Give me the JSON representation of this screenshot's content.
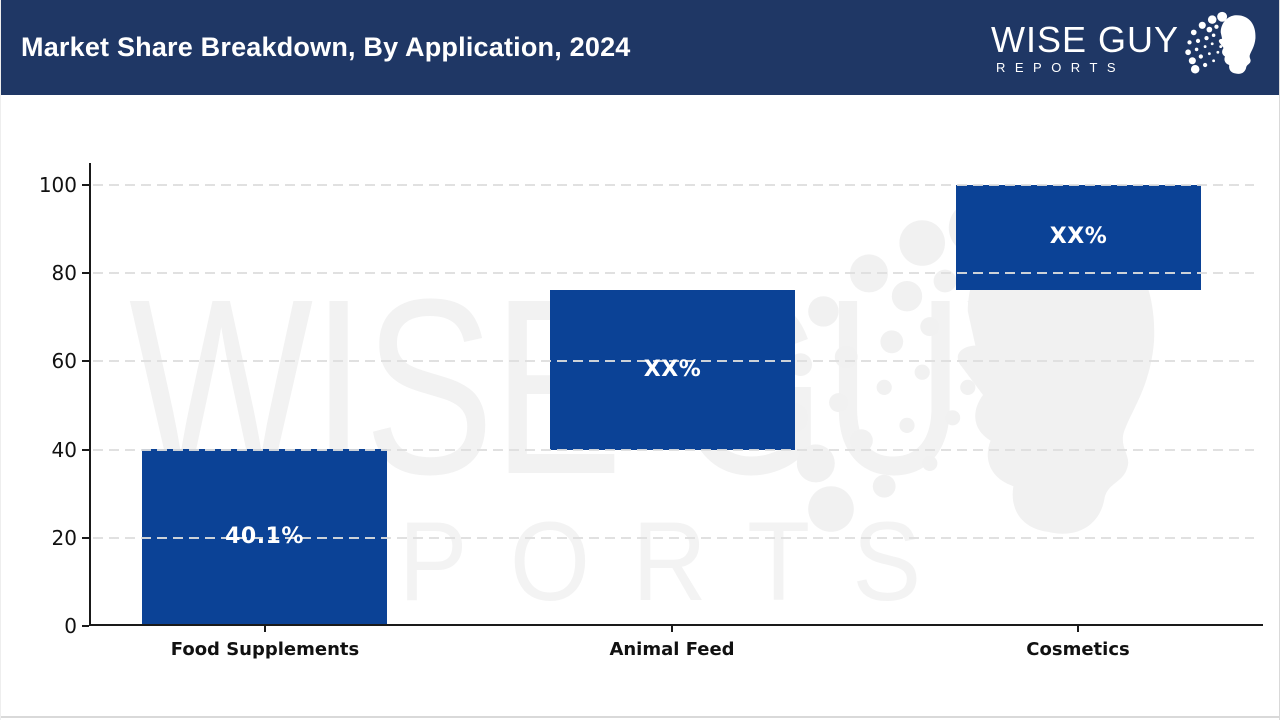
{
  "header": {
    "title": "Market Share Breakdown, By Application, 2024",
    "background": "#1f3765",
    "logo": {
      "line1": "WISE GUY",
      "line2": "REPORTS"
    }
  },
  "watermark": {
    "line1": "WISE GUY",
    "line2": "REPORTS"
  },
  "colors": {
    "header_navy": "#1f3765",
    "bar_blue": "#0b4296",
    "gridline_gray": "#dedede",
    "axis_black": "#1a1a1a",
    "watermark_gray": "#f2f2f2",
    "footer_hairline": "#d9d9d9"
  },
  "chart_data": {
    "type": "bar",
    "subtype": "floating-waterfall",
    "title": "Market Share Breakdown, By Application, 2024",
    "categories": [
      "Food Supplements",
      "Animal Feed",
      "Cosmetics"
    ],
    "segments": [
      {
        "category": "Food Supplements",
        "start": 0,
        "end": 40.1,
        "label": "40.1%"
      },
      {
        "category": "Animal Feed",
        "start": 40,
        "end": 76.2,
        "label": "XX%"
      },
      {
        "category": "Cosmetics",
        "start": 76.2,
        "end": 100,
        "label": "XX%"
      }
    ],
    "xlabel": "",
    "ylabel": "",
    "yticks": [
      0,
      20,
      40,
      60,
      80,
      100
    ],
    "ylim": [
      0,
      105
    ],
    "grid": true,
    "grid_style": "dashed",
    "legend": "none",
    "bar_color": "#0b4296",
    "value_label_color": "#ffffff"
  }
}
